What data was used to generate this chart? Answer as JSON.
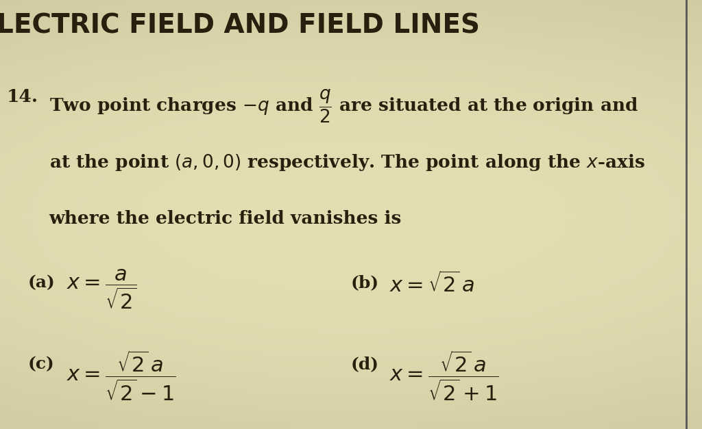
{
  "title": "LECTRIC FIELD AND FIELD LINES",
  "background_color": "#c8bf9e",
  "text_color": "#2a1f0e",
  "question_num": "14.",
  "question_text_line1": "Two point charges $-q$ and $\\dfrac{q}{2}$ are situated at the origin and",
  "question_text_line2": "at the point $(a, 0, 0)$ respectively. The point along the $x$-axis",
  "question_text_line3": "where the electric field vanishes is",
  "opt_a_label": "(a)",
  "opt_a_expr": "$x = \\dfrac{a}{\\sqrt{2}}$",
  "opt_b_label": "(b)",
  "opt_b_expr": "$x = \\sqrt{2}\\, a$",
  "opt_c_label": "(c)",
  "opt_c_expr": "$x = \\dfrac{\\sqrt{2}\\, a}{\\sqrt{2}-1}$",
  "opt_d_label": "(d)",
  "opt_d_expr": "$x = \\dfrac{\\sqrt{2}\\, a}{\\sqrt{2}+1}$",
  "title_fontsize": 28,
  "body_fontsize": 19,
  "option_label_fontsize": 18,
  "option_expr_fontsize": 20
}
